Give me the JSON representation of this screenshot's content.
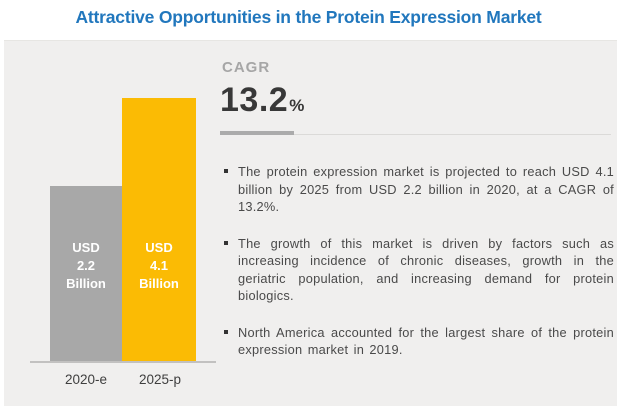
{
  "page": {
    "title": "Attractive Opportunities in the Protein Expression Market"
  },
  "colors": {
    "title_blue": "#2177BD",
    "panel_bg": "#F0EFEE",
    "bar_gray": "#A8A8A8",
    "bar_yellow": "#FBBB04",
    "cagr_label_gray": "#A6A6A6",
    "number_dark": "#383838",
    "body_text": "#4A4A4A"
  },
  "chart_data": {
    "type": "bar",
    "title": "",
    "unit": "USD Billion",
    "categories": [
      "2020-e",
      "2025-p"
    ],
    "values": [
      2.2,
      4.1
    ],
    "bars": [
      {
        "category": "2020-e",
        "value": 2.2,
        "color": "#A8A8A8",
        "label_lines": [
          "USD",
          "2.2",
          "Billion"
        ]
      },
      {
        "category": "2025-p",
        "value": 4.1,
        "color": "#FBBB04",
        "label_lines": [
          "USD",
          "4.1",
          "Billion"
        ]
      }
    ],
    "ylim": [
      0,
      4.5
    ],
    "grid": false,
    "legend": "none"
  },
  "cagr": {
    "label": "CAGR",
    "value": "13.2",
    "unit": "%"
  },
  "bullets": [
    "The protein expression market is projected to reach USD 4.1 billion by 2025 from USD 2.2 billion in 2020, at a CAGR of 13.2%.",
    "The growth of this market is driven by factors such as increasing incidence of chronic diseases, growth in the geriatric population, and increasing demand for protein biologics.",
    "North America accounted for the largest share of the protein expression market in 2019."
  ]
}
